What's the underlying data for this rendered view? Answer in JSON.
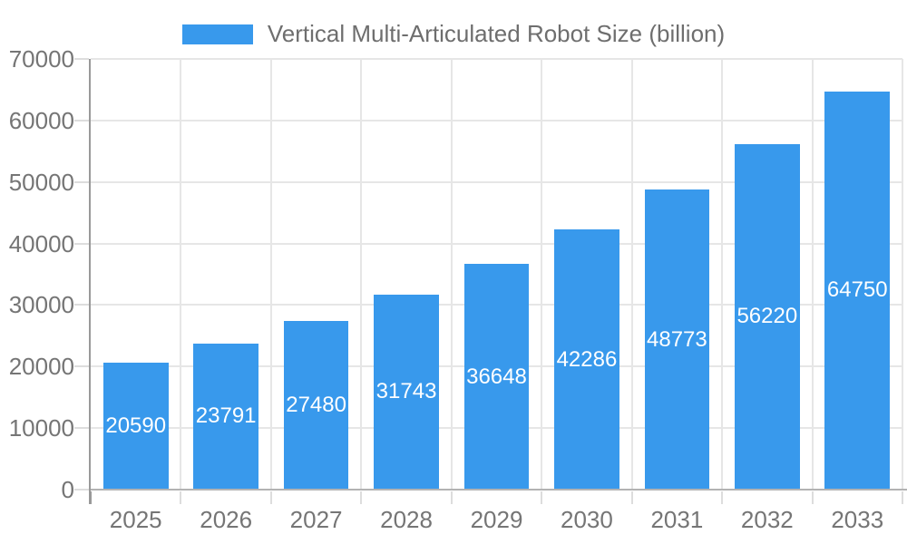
{
  "legend": {
    "label": "Vertical Multi-Articulated Robot Size (billion)"
  },
  "chart_data": {
    "type": "bar",
    "title": "Vertical Multi-Articulated Robot Size (billion)",
    "categories": [
      "2025",
      "2026",
      "2027",
      "2028",
      "2029",
      "2030",
      "2031",
      "2032",
      "2033"
    ],
    "values": [
      20590,
      23791,
      27480,
      31743,
      36648,
      42286,
      48773,
      56220,
      64750
    ],
    "xlabel": "",
    "ylabel": "",
    "ylim": [
      0,
      70000
    ],
    "yticks": [
      0,
      10000,
      20000,
      30000,
      40000,
      50000,
      60000,
      70000
    ],
    "grid": true,
    "legend_position": "top-center",
    "value_labels": "inside-center",
    "colors": {
      "bar": "#3899ec",
      "value_label": "#ffffff",
      "axis_text": "#757575",
      "legend_text": "#6e6e6e",
      "gridline": "#e6e6e6",
      "y_axis": "#999999",
      "x_axis": "#b3b3b3",
      "tick": "#dddddd",
      "background": "#ffffff"
    }
  }
}
